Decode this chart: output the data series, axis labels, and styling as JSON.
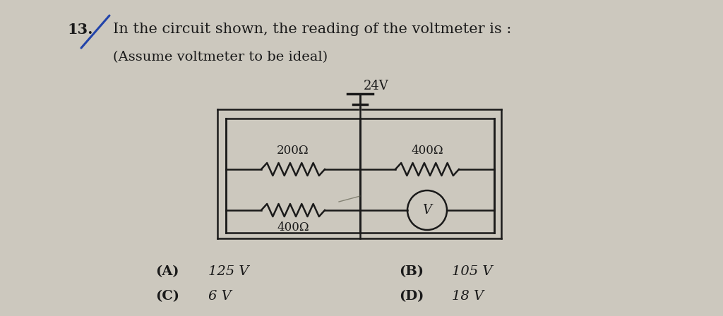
{
  "title_num": "13.",
  "title_text": "In the circuit shown, the reading of the voltmeter is :",
  "subtitle": "(Assume voltmeter to be ideal)",
  "bg_color": "#ccc8be",
  "text_color": "#1a1a1a",
  "options": [
    {
      "label": "(A)",
      "value": "125 V"
    },
    {
      "label": "(B)",
      "value": "105 V"
    },
    {
      "label": "(C)",
      "value": "6 V"
    },
    {
      "label": "(D)",
      "value": "18 V"
    }
  ],
  "circuit": {
    "battery_label": "24V",
    "r1_label": "200Ω",
    "r2_label": "400Ω",
    "r3_label": "400Ω",
    "voltmeter_label": "V"
  },
  "lw": 1.8
}
